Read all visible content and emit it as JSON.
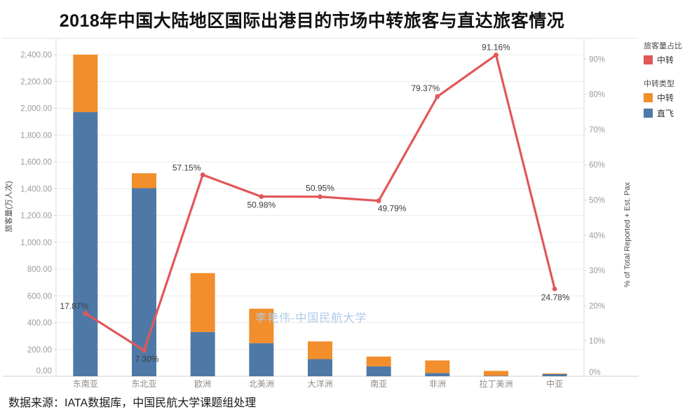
{
  "title": "2018年中国大陆地区国际出港目的市场中转旅客与直达旅客情况",
  "source_note": "数据来源：IATA数据库，中国民航大学课题组处理",
  "watermark": "李艳伟-中国民航大学",
  "legend": {
    "group1_title": "旅客量占比",
    "group1_items": [
      {
        "label": "中转",
        "color": "#e15759"
      }
    ],
    "group2_title": "中转类型",
    "group2_items": [
      {
        "label": "中转",
        "color": "#f28e2b"
      },
      {
        "label": "直飞",
        "color": "#4e79a7"
      }
    ]
  },
  "chart_data": {
    "type": "bar",
    "subtype": "stacked-bar-with-line-overlay",
    "categories": [
      "东南亚",
      "东北亚",
      "欧洲",
      "北美洲",
      "大洋洲",
      "南亚",
      "非洲",
      "拉丁美洲",
      "中亚"
    ],
    "series": [
      {
        "name": "直飞",
        "type": "bar",
        "color": "#4e79a7",
        "values": [
          1971,
          1404,
          330,
          247,
          128,
          74,
          24,
          4,
          16
        ]
      },
      {
        "name": "中转",
        "type": "bar",
        "color": "#f28e2b",
        "values": [
          429,
          111,
          440,
          257,
          132,
          73,
          94,
          36,
          5
        ]
      },
      {
        "name": "中转占比",
        "type": "line",
        "color": "#e15759",
        "values": [
          17.87,
          7.3,
          57.15,
          50.98,
          50.95,
          49.79,
          79.37,
          91.16,
          24.78
        ],
        "point_labels": [
          "17.87%",
          "7.30%",
          "57.15%",
          "50.98%",
          "50.95%",
          "49.79%",
          "79.37%",
          "91.16%",
          "24.78%"
        ]
      }
    ],
    "y_left": {
      "title": "旅客量(万人次)",
      "min": 0,
      "max": 2400,
      "step": 200,
      "tick_labels": [
        "0.00",
        "200.00",
        "400.00",
        "600.00",
        "800.00",
        "1,000.00",
        "1,200.00",
        "1,400.00",
        "1,600.00",
        "1,800.00",
        "2,000.00",
        "2,200.00",
        "2,400.00"
      ]
    },
    "y_right": {
      "title": "% of Total Reported + Est. Pax",
      "min": 0,
      "max": 90,
      "step": 10,
      "tick_labels": [
        "0%",
        "10%",
        "20%",
        "30%",
        "40%",
        "50%",
        "60%",
        "70%",
        "80%",
        "90%"
      ]
    },
    "grid": true,
    "legend_position": "top-right",
    "colors": {
      "bar_direct": "#4e79a7",
      "bar_transfer": "#f28e2b",
      "line_transfer_share": "#e15759",
      "gridline": "#ececec",
      "axis_line": "#d9d9d9",
      "tick_label": "#9b9b9b",
      "category_label": "#8a8a8a",
      "annotation": "#3c3c3c",
      "axis_title": "#4a4a4a"
    }
  }
}
